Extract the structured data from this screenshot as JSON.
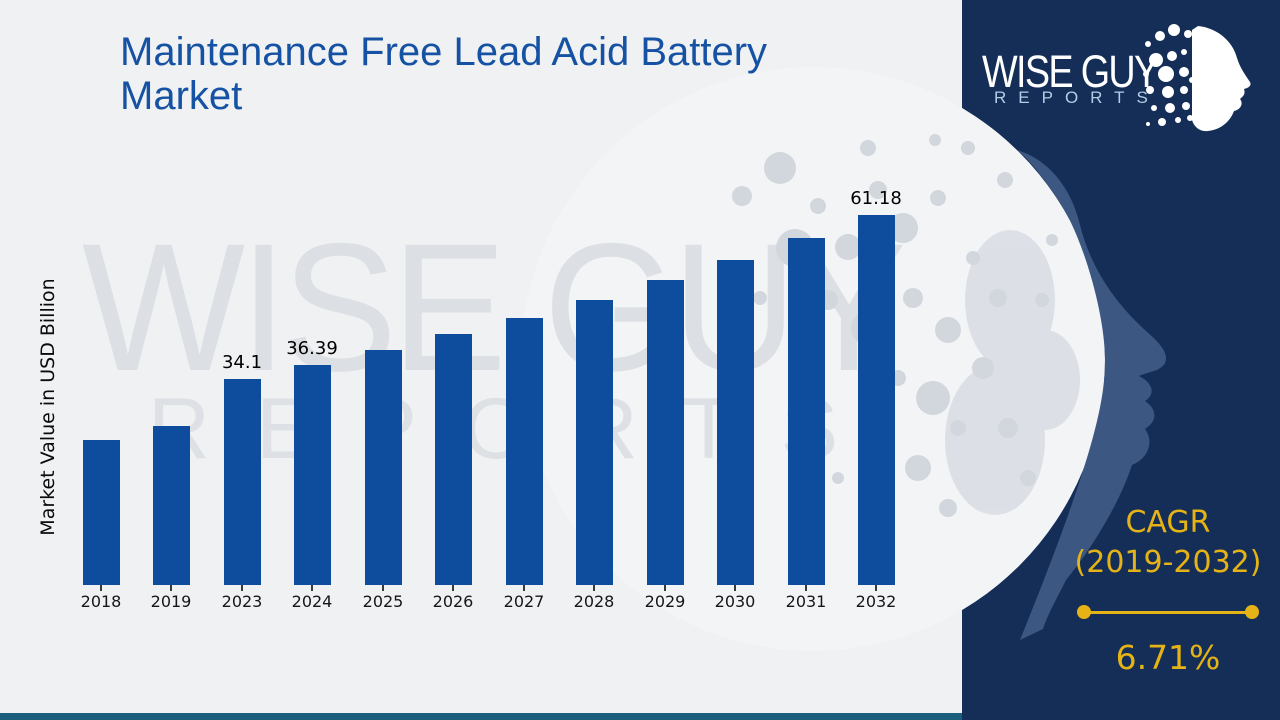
{
  "title": "Maintenance Free Lead Acid Battery Market",
  "y_axis_label": "Market Value in USD Billion",
  "watermark": {
    "line1": "WISE GUY",
    "line2": "REPORTS"
  },
  "logo": {
    "line1": "WISE GUY",
    "line2": "REPORTS"
  },
  "cagr": {
    "label": "CAGR",
    "range": "(2019-2032)",
    "value": "6.71%"
  },
  "colors": {
    "bar_blue": "#0e4d9d",
    "title_blue": "#1652a3",
    "panel_navy": "#142e57",
    "accent_yellow": "#e6b316",
    "bottom_teal": "#1b5f7c",
    "background_gray": "#f0f1f2",
    "face_silhouette_blue": "#3c5781"
  },
  "chart_data": {
    "type": "bar",
    "title": "Maintenance Free Lead Acid Battery Market",
    "xlabel": "",
    "ylabel": "Market Value in USD Billion",
    "ylim": [
      0,
      65
    ],
    "grid": false,
    "legend": "none",
    "bar_color": "#0e4d9d",
    "categories": [
      "2018",
      "2019",
      "2023",
      "2024",
      "2025",
      "2026",
      "2027",
      "2028",
      "2029",
      "2030",
      "2031",
      "2032"
    ],
    "values": [
      24.0,
      26.3,
      34.1,
      36.39,
      38.83,
      41.44,
      44.22,
      47.18,
      50.35,
      53.73,
      57.33,
      61.18
    ],
    "data_labels": {
      "2023": "34.1",
      "2024": "36.39",
      "2032": "61.18"
    }
  }
}
